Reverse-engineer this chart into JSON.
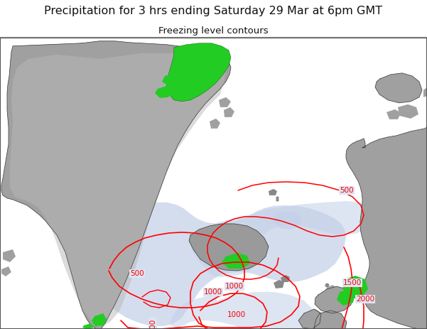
{
  "title": "Precipitation for 3 hrs ending Saturday 29 Mar at 6pm GMT",
  "subtitle": "Freezing level contours",
  "title_fontsize": 11.5,
  "subtitle_fontsize": 9.5,
  "background_color": "#ffffff",
  "map_bg_color": "#dce4f2",
  "fig_width": 6.01,
  "fig_height": 4.63,
  "dpi": 100,
  "contour_color": "#ff0000",
  "land_color": "#a0a0a0",
  "land_dark": "#888888",
  "precip_color": "#22cc22",
  "shading_color": "#c2cfe8",
  "title_bar_color": "#f0f0f0",
  "border_color": "#555555"
}
